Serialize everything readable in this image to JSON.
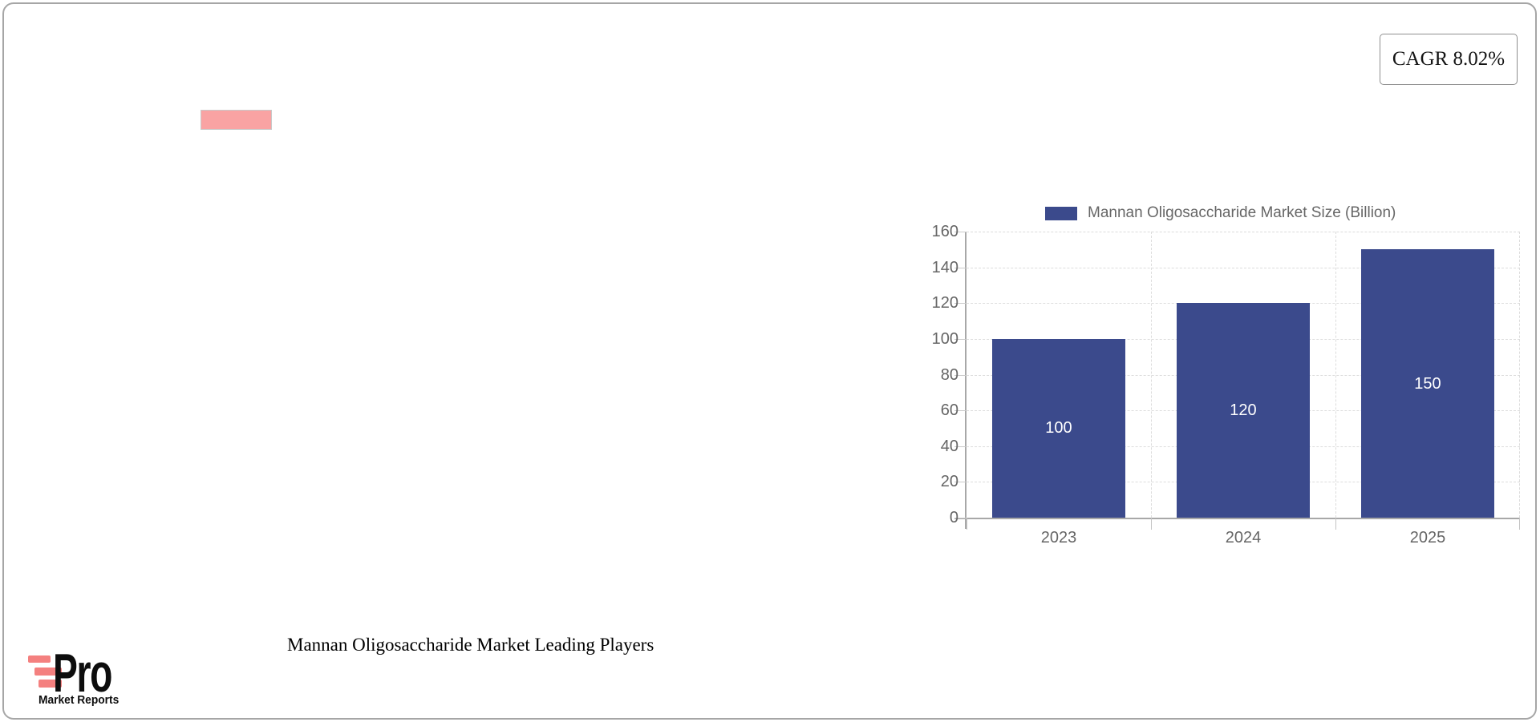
{
  "page": {
    "background": "#ffffff",
    "border_color": "#a6a6a6"
  },
  "badge": {
    "label": "CAGR 8.02%"
  },
  "decor": {
    "pink_swatch_color": "#f9a3a3"
  },
  "caption": "Mannan Oligosaccharide Market Leading Players",
  "logo": {
    "title": "Pro",
    "subtitle": "Market Reports",
    "accent_color": "#f4807f",
    "text_color": "#0d0d0d"
  },
  "chart_data": {
    "type": "bar",
    "legend": "Mannan Oligosaccharide Market Size (Billion)",
    "categories": [
      "2023",
      "2024",
      "2025"
    ],
    "values": [
      100,
      120,
      150
    ],
    "ylim": [
      0,
      160
    ],
    "yticks": [
      0,
      20,
      40,
      60,
      80,
      100,
      120,
      140,
      160
    ],
    "grid": true,
    "legend_position": "top",
    "bar_color": "#3b4a8c",
    "value_label_color": "#ffffff",
    "axis_color": "#a8a8a8",
    "grid_color": "#dcdcdc",
    "tick_text_color": "#666666",
    "legend_text_color": "#666666"
  }
}
